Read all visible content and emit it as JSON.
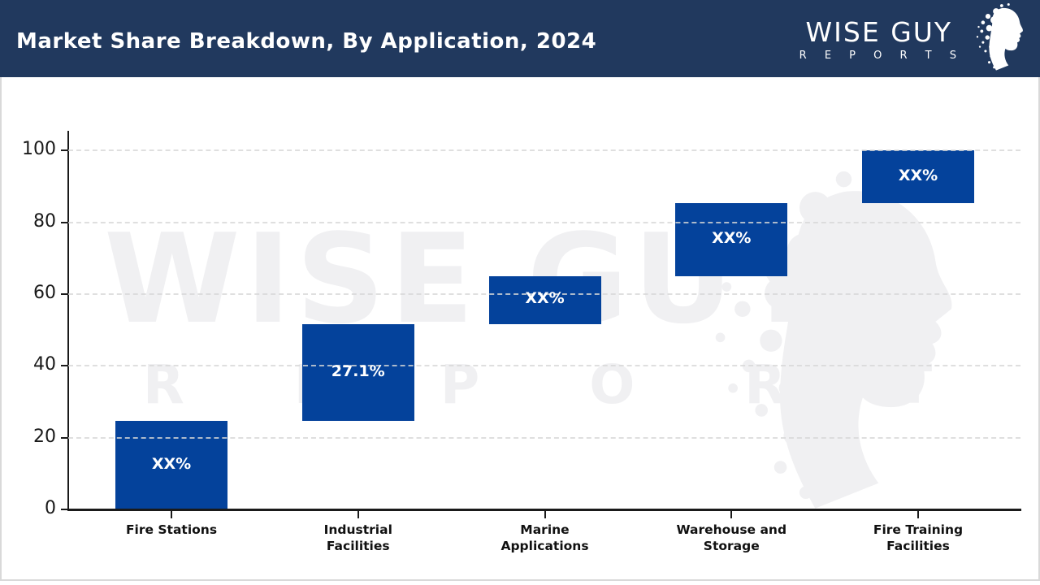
{
  "header": {
    "title": "Market Share Breakdown, By Application, 2024",
    "logo_line1": "WISE GUY",
    "logo_line2": "R E P O R T S",
    "background_color": "#21395e"
  },
  "watermark": {
    "line1": "WISE GUY",
    "line2": "R E P O R T S"
  },
  "chart_data": {
    "type": "bar",
    "subtype": "waterfall (floating segment bars)",
    "title": "Market Share Breakdown, By Application, 2024",
    "categories": [
      "Fire Stations",
      "Industrial Facilities",
      "Marine Applications",
      "Warehouse and Storage",
      "Fire Training Facilities"
    ],
    "categories_lines": [
      [
        "Fire Stations"
      ],
      [
        "Industrial",
        "Facilities"
      ],
      [
        "Marine",
        "Applications"
      ],
      [
        "Warehouse and",
        "Storage"
      ],
      [
        "Fire Training",
        "Facilities"
      ]
    ],
    "segments": [
      {
        "category": "Fire Stations",
        "start": 0,
        "end": 24.6,
        "value": 24.6,
        "label": "XX%"
      },
      {
        "category": "Industrial Facilities",
        "start": 24.6,
        "end": 51.7,
        "value": 27.1,
        "label": "27.1%"
      },
      {
        "category": "Marine Applications",
        "start": 51.7,
        "end": 65.0,
        "value": 13.3,
        "label": "XX%"
      },
      {
        "category": "Warehouse and Storage",
        "start": 65.0,
        "end": 85.3,
        "value": 20.3,
        "label": "XX%"
      },
      {
        "category": "Fire Training Facilities",
        "start": 85.3,
        "end": 100,
        "value": 14.7,
        "label": "XX%"
      }
    ],
    "y_ticks": [
      0,
      20,
      40,
      60,
      80,
      100
    ],
    "ylim": [
      0,
      105
    ],
    "xlabel": "",
    "ylabel": "",
    "bar_color": "#04429b",
    "grid": "horizontal dashed, light gray, drawn over bars",
    "legend": "none"
  }
}
